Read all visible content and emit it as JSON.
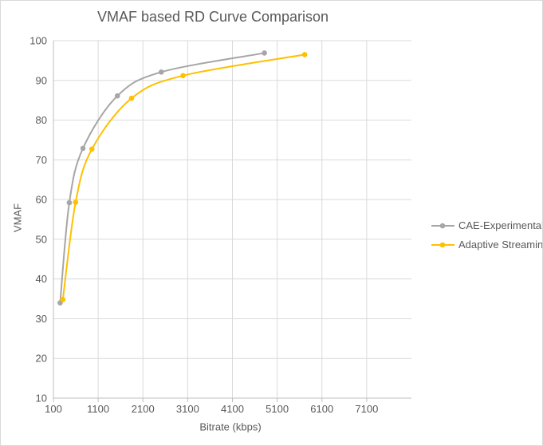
{
  "chart_data": {
    "type": "line",
    "title": "VMAF based RD Curve Comparison",
    "xlabel": "Bitrate (kbps)",
    "ylabel": "VMAF",
    "xlim": [
      100,
      8100
    ],
    "ylim": [
      10,
      100
    ],
    "x_ticks": [
      100,
      1100,
      2100,
      3100,
      4100,
      5100,
      6100,
      7100
    ],
    "y_ticks": [
      10,
      20,
      30,
      40,
      50,
      60,
      70,
      80,
      90,
      100
    ],
    "grid": true,
    "smooth": true,
    "markers": "circle",
    "legend_position": "right",
    "series": [
      {
        "name": "CAE-Experimental",
        "color": "#A6A6A6",
        "x": [
          250,
          455,
          760,
          1530,
          2510,
          4815
        ],
        "y": [
          34.0,
          59.2,
          72.9,
          86.1,
          92.1,
          96.9
        ]
      },
      {
        "name": "Adaptive Streaming",
        "color": "#FFC000",
        "x": [
          310,
          595,
          960,
          1845,
          2995,
          5715
        ],
        "y": [
          34.8,
          59.3,
          72.7,
          85.5,
          91.2,
          96.5
        ]
      }
    ],
    "colors": {
      "background": "#FFFFFF",
      "border": "#D9D9D9",
      "gridline": "#DADADA",
      "axis_line": "#BFBFBF",
      "text": "#595959"
    }
  }
}
